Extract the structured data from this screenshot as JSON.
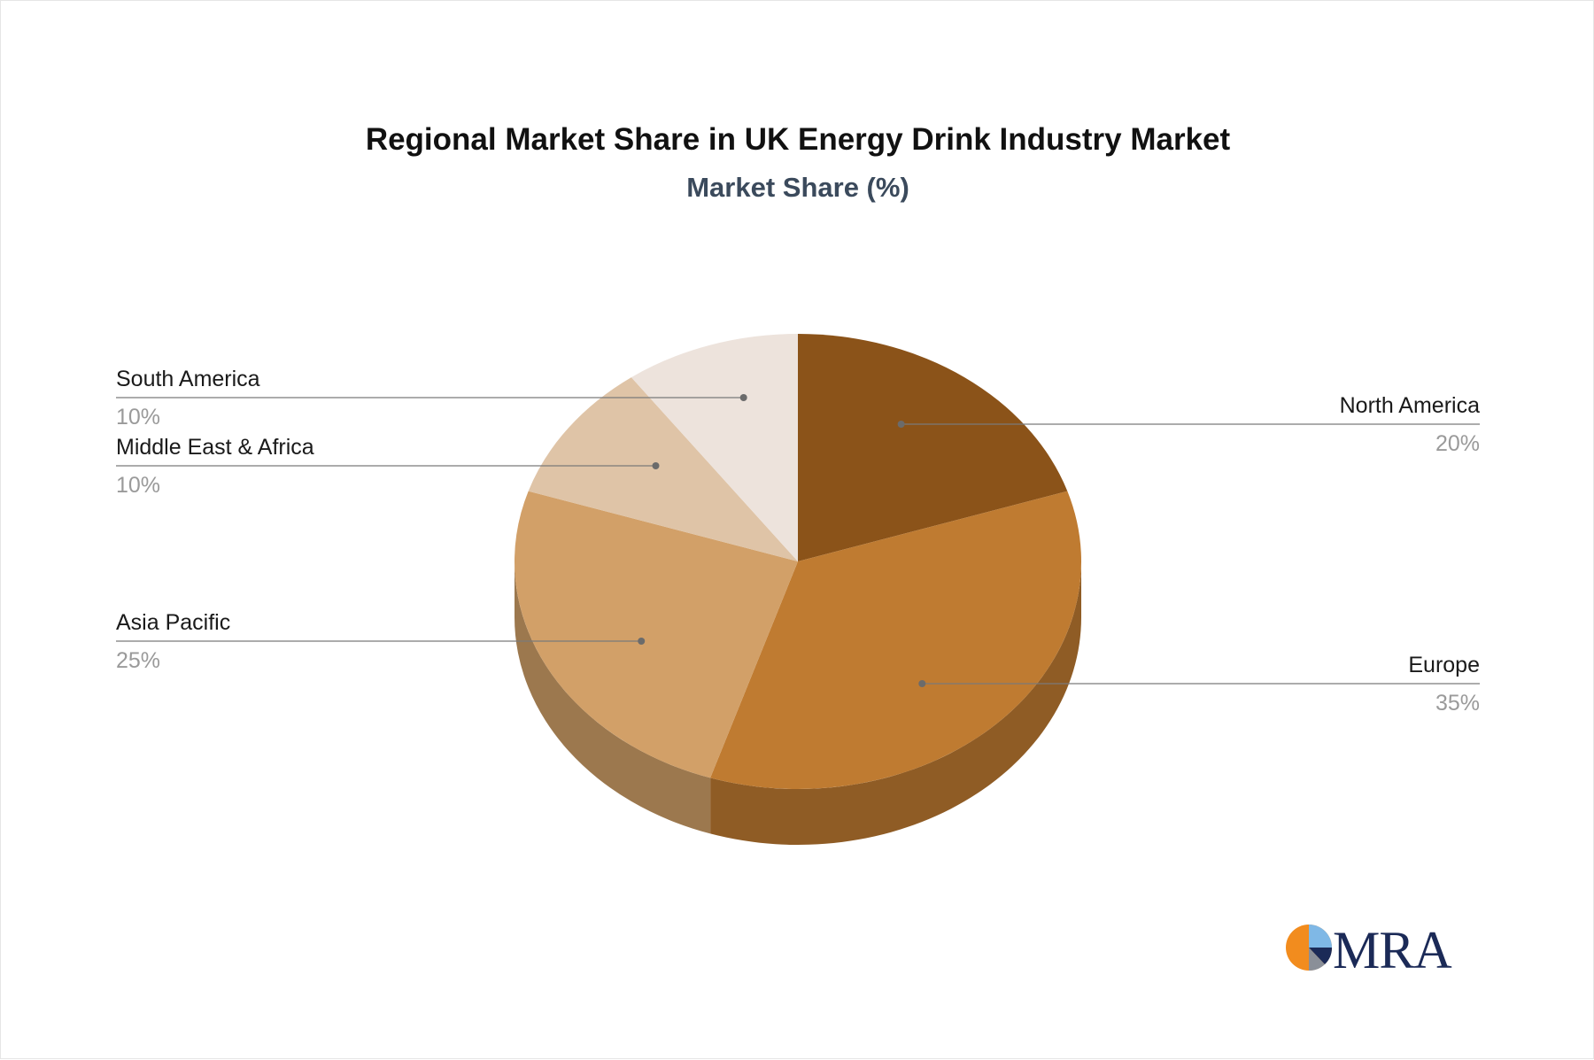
{
  "chart_data": {
    "type": "pie",
    "title": "Regional Market Share in UK Energy Drink Industry Market",
    "subtitle": "Market Share (%)",
    "style": "3d",
    "slices": [
      {
        "label": "North America",
        "value": 20,
        "value_label": "20%",
        "color": "#8b5319",
        "side_color": "#6e4214"
      },
      {
        "label": "Europe",
        "value": 35,
        "value_label": "35%",
        "color": "#bf7b31",
        "side_color": "#8f5c25"
      },
      {
        "label": "Asia Pacific",
        "value": 25,
        "value_label": "25%",
        "color": "#d2a068",
        "side_color": "#9c784e"
      },
      {
        "label": "Middle East & Africa",
        "value": 10,
        "value_label": "10%",
        "color": "#dfc4a7",
        "side_color": "#a7937d"
      },
      {
        "label": "South America",
        "value": 10,
        "value_label": "10%",
        "color": "#ede3dc",
        "side_color": "#b2aaa5"
      }
    ]
  },
  "logo": {
    "text": "MRA",
    "colors": {
      "orange": "#f28c1e",
      "light_blue": "#7fb8e6",
      "navy": "#1b2a57",
      "grey": "#8a8f98"
    }
  }
}
